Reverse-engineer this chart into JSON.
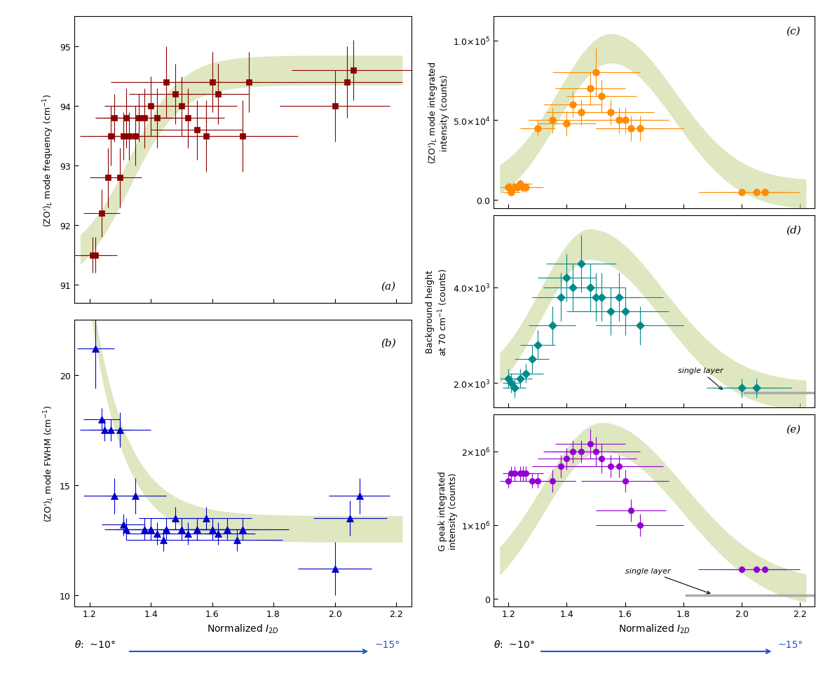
{
  "panel_a": {
    "x": [
      1.21,
      1.22,
      1.24,
      1.26,
      1.27,
      1.28,
      1.3,
      1.31,
      1.32,
      1.33,
      1.35,
      1.36,
      1.38,
      1.4,
      1.42,
      1.45,
      1.48,
      1.5,
      1.52,
      1.55,
      1.58,
      1.6,
      1.62,
      1.7,
      1.72,
      2.0,
      2.04,
      2.06
    ],
    "y": [
      91.5,
      91.5,
      92.2,
      92.8,
      93.5,
      93.8,
      92.8,
      93.5,
      93.8,
      93.5,
      93.5,
      93.8,
      93.8,
      94.0,
      93.8,
      94.4,
      94.2,
      94.0,
      93.8,
      93.6,
      93.5,
      94.4,
      94.2,
      93.5,
      94.4,
      94.0,
      94.4,
      94.6
    ],
    "xerr": [
      0.08,
      0.05,
      0.06,
      0.06,
      0.1,
      0.06,
      0.07,
      0.07,
      0.1,
      0.1,
      0.1,
      0.12,
      0.12,
      0.15,
      0.1,
      0.18,
      0.15,
      0.18,
      0.12,
      0.15,
      0.15,
      0.15,
      0.1,
      0.18,
      0.15,
      0.18,
      0.18,
      0.2
    ],
    "yerr": [
      0.3,
      0.3,
      0.4,
      0.5,
      0.5,
      0.4,
      0.5,
      0.4,
      0.5,
      0.4,
      0.5,
      0.4,
      0.5,
      0.5,
      0.5,
      0.6,
      0.5,
      0.5,
      0.5,
      0.5,
      0.6,
      0.5,
      0.5,
      0.6,
      0.5,
      0.6,
      0.6,
      0.5
    ],
    "color": "#8B0000",
    "ylabel": "(ZO')$_L$ mode frequency (cm$^{-1}$)",
    "xlabel": "Normalized $I_{2D}$",
    "ylim": [
      90.7,
      95.5
    ],
    "yticks": [
      91,
      92,
      93,
      94,
      95
    ],
    "xlim": [
      1.15,
      2.25
    ],
    "xticks": [
      1.2,
      1.4,
      1.6,
      1.8,
      2.0,
      2.2
    ],
    "label": "(a)"
  },
  "panel_b": {
    "x": [
      1.22,
      1.24,
      1.25,
      1.27,
      1.28,
      1.3,
      1.31,
      1.32,
      1.35,
      1.38,
      1.4,
      1.42,
      1.44,
      1.45,
      1.48,
      1.5,
      1.52,
      1.55,
      1.58,
      1.6,
      1.62,
      1.65,
      1.68,
      1.7,
      2.0,
      2.05,
      2.08
    ],
    "y": [
      21.2,
      18.0,
      17.5,
      17.5,
      14.5,
      17.5,
      13.2,
      13.0,
      14.5,
      13.0,
      13.0,
      12.8,
      12.5,
      13.0,
      13.5,
      13.0,
      12.8,
      13.0,
      13.5,
      13.0,
      12.8,
      13.0,
      12.5,
      13.0,
      11.2,
      13.5,
      14.5
    ],
    "xerr": [
      0.06,
      0.06,
      0.08,
      0.07,
      0.1,
      0.1,
      0.07,
      0.07,
      0.1,
      0.12,
      0.12,
      0.1,
      0.12,
      0.15,
      0.12,
      0.15,
      0.1,
      0.12,
      0.15,
      0.15,
      0.12,
      0.15,
      0.15,
      0.15,
      0.12,
      0.12,
      0.1
    ],
    "yerr": [
      1.8,
      0.5,
      0.5,
      0.5,
      0.8,
      0.8,
      0.5,
      0.5,
      0.8,
      0.5,
      0.5,
      0.5,
      0.5,
      0.5,
      0.5,
      0.5,
      0.5,
      0.5,
      0.5,
      0.5,
      0.5,
      0.5,
      0.5,
      0.5,
      1.2,
      0.8,
      0.8
    ],
    "color": "#0000CC",
    "ylabel": "(ZO')$_L$ mode FWHM (cm$^{-1}$)",
    "xlabel": "Normalized $I_{2D}$",
    "ylim": [
      9.5,
      22.5
    ],
    "yticks": [
      10,
      15,
      20
    ],
    "xlim": [
      1.15,
      2.25
    ],
    "xticks": [
      1.2,
      1.4,
      1.6,
      1.8,
      2.0,
      2.2
    ],
    "label": "(b)"
  },
  "panel_c": {
    "x": [
      1.2,
      1.21,
      1.22,
      1.23,
      1.24,
      1.25,
      1.26,
      1.3,
      1.35,
      1.4,
      1.42,
      1.45,
      1.48,
      1.5,
      1.52,
      1.55,
      1.58,
      1.6,
      1.62,
      1.65,
      2.0,
      2.05,
      2.08
    ],
    "y": [
      8000,
      5000,
      8000,
      8000,
      10000,
      8000,
      8000,
      45000,
      50000,
      48000,
      60000,
      55000,
      70000,
      80000,
      65000,
      55000,
      50000,
      50000,
      45000,
      45000,
      5000,
      5000,
      5000
    ],
    "xerr": [
      0.03,
      0.03,
      0.03,
      0.04,
      0.04,
      0.06,
      0.06,
      0.06,
      0.08,
      0.1,
      0.1,
      0.12,
      0.12,
      0.15,
      0.12,
      0.15,
      0.15,
      0.15,
      0.12,
      0.15,
      0.15,
      0.12,
      0.12
    ],
    "yerr": [
      3000,
      2000,
      3000,
      3000,
      3000,
      3000,
      3000,
      5000,
      8000,
      8000,
      8000,
      8000,
      10000,
      15000,
      10000,
      8000,
      8000,
      8000,
      8000,
      8000,
      2000,
      2000,
      2000
    ],
    "color": "#FF8C00",
    "ylabel": "(ZO')$_L$ mode integrated\nintensity (counts)",
    "ylim": [
      -5000,
      115000
    ],
    "yticks": [
      0,
      50000,
      100000
    ],
    "yticklabels": [
      "0.0",
      "5.0×10$^4$",
      "1.0×10$^5$"
    ],
    "xlim": [
      1.15,
      2.25
    ],
    "xticks": [
      1.2,
      1.4,
      1.6,
      1.8,
      2.0,
      2.2
    ],
    "label": "(c)"
  },
  "panel_d": {
    "x": [
      1.2,
      1.21,
      1.22,
      1.24,
      1.26,
      1.28,
      1.3,
      1.35,
      1.38,
      1.4,
      1.42,
      1.45,
      1.48,
      1.5,
      1.52,
      1.55,
      1.58,
      1.6,
      1.65,
      2.0,
      2.05
    ],
    "y": [
      2100,
      2000,
      1900,
      2100,
      2200,
      2500,
      2800,
      3200,
      3800,
      4200,
      4000,
      4500,
      4000,
      3800,
      3800,
      3500,
      3800,
      3500,
      3200,
      1900,
      1900
    ],
    "xerr": [
      0.03,
      0.03,
      0.04,
      0.04,
      0.06,
      0.06,
      0.06,
      0.08,
      0.1,
      0.1,
      0.1,
      0.12,
      0.12,
      0.15,
      0.12,
      0.15,
      0.15,
      0.15,
      0.15,
      0.12,
      0.12
    ],
    "yerr": [
      200,
      200,
      200,
      200,
      200,
      300,
      300,
      400,
      500,
      500,
      500,
      600,
      500,
      500,
      500,
      500,
      500,
      500,
      400,
      200,
      200
    ],
    "single_layer_y": 1800,
    "color": "#008B8B",
    "ylabel": "Background height\nat 70 cm$^{-1}$ (counts)",
    "ylim": [
      1500,
      5500
    ],
    "yticks": [
      2000,
      4000
    ],
    "yticklabels": [
      "2.0×10$^3$",
      "4.0×10$^3$"
    ],
    "xlim": [
      1.15,
      2.25
    ],
    "xticks": [
      1.2,
      1.4,
      1.6,
      1.8,
      2.0,
      2.2
    ],
    "label": "(d)"
  },
  "panel_e": {
    "x": [
      1.2,
      1.21,
      1.22,
      1.24,
      1.25,
      1.26,
      1.28,
      1.3,
      1.35,
      1.38,
      1.4,
      1.42,
      1.45,
      1.48,
      1.5,
      1.52,
      1.55,
      1.58,
      1.6,
      1.62,
      1.65,
      2.0,
      2.05,
      2.08
    ],
    "y": [
      1600000,
      1700000,
      1700000,
      1700000,
      1700000,
      1700000,
      1600000,
      1600000,
      1600000,
      1800000,
      1900000,
      2000000,
      2000000,
      2100000,
      2000000,
      1900000,
      1800000,
      1800000,
      1600000,
      1200000,
      1000000,
      400000,
      400000,
      400000
    ],
    "xerr": [
      0.03,
      0.03,
      0.03,
      0.04,
      0.04,
      0.06,
      0.06,
      0.06,
      0.08,
      0.1,
      0.1,
      0.1,
      0.12,
      0.12,
      0.15,
      0.12,
      0.15,
      0.15,
      0.15,
      0.12,
      0.15,
      0.15,
      0.12,
      0.12
    ],
    "yerr": [
      100000,
      100000,
      100000,
      100000,
      100000,
      100000,
      100000,
      100000,
      150000,
      150000,
      150000,
      150000,
      150000,
      200000,
      200000,
      200000,
      150000,
      150000,
      150000,
      150000,
      150000,
      50000,
      50000,
      50000
    ],
    "single_layer_y": 50000,
    "color": "#9400D3",
    "ylabel": "G peak integrated\nintensity (counts)",
    "ylim": [
      -100000,
      2500000
    ],
    "yticks": [
      0,
      1000000,
      2000000
    ],
    "yticklabels": [
      "0",
      "1×10$^6$",
      "2×10$^6$"
    ],
    "xlim": [
      1.15,
      2.25
    ],
    "xticks": [
      1.2,
      1.4,
      1.6,
      1.8,
      2.0,
      2.2
    ],
    "label": "(e)"
  },
  "band_color": "#c8d896",
  "band_alpha": 0.6
}
